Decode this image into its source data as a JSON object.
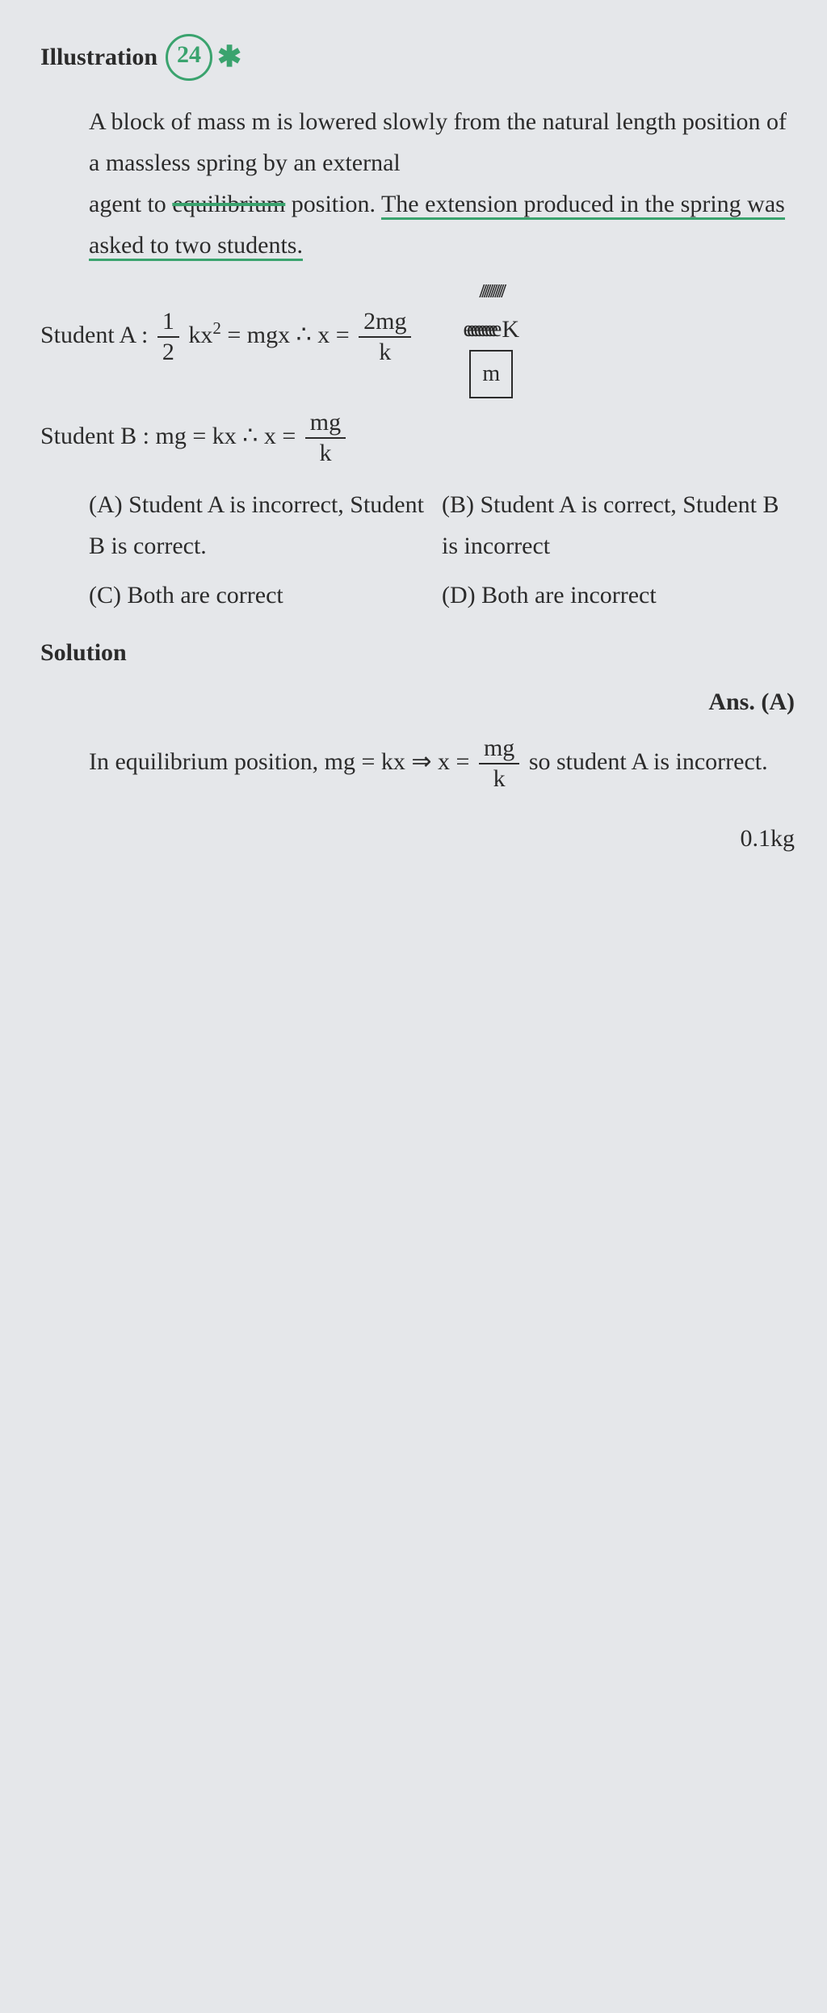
{
  "heading": {
    "label": "Illustration",
    "number": "24",
    "star": "✱"
  },
  "problem": {
    "line1a": "A block of mass m is lowered slowly from the natural length position of a massless spring by an external",
    "line2a": "agent to ",
    "line2b": "equilibrium",
    "line2c": " position. ",
    "line2d": "The extension produced in the spring was asked to two students."
  },
  "studentA": {
    "prefix": "Student A : ",
    "half_num": "1",
    "half_den": "2",
    "kx2": "kx",
    "exp": "2",
    "eq": " = mgx    ∴ x = ",
    "frac_num": "2mg",
    "frac_den": "k"
  },
  "studentB": {
    "prefix": "Student B : mg = kx     ∴ x = ",
    "frac_num": "mg",
    "frac_den": "k"
  },
  "figure": {
    "ceiling": "///////////",
    "spring": "eeeeeeeee",
    "k": "K",
    "mass": "m"
  },
  "options": {
    "A": "(A) Student A is incorrect, Student B is correct.",
    "B": "(B) Student A is correct, Student B is incorrect",
    "C": "(C) Both are correct",
    "D": "(D) Both are incorrect"
  },
  "solution": {
    "heading": "Solution",
    "answer": "Ans. (A)",
    "text1": "In equilibrium position, mg = kx ⇒ x = ",
    "frac_num": "mg",
    "frac_den": "k",
    "text2": " so student A is incorrect."
  },
  "footer": {
    "note": "0.1kg"
  }
}
